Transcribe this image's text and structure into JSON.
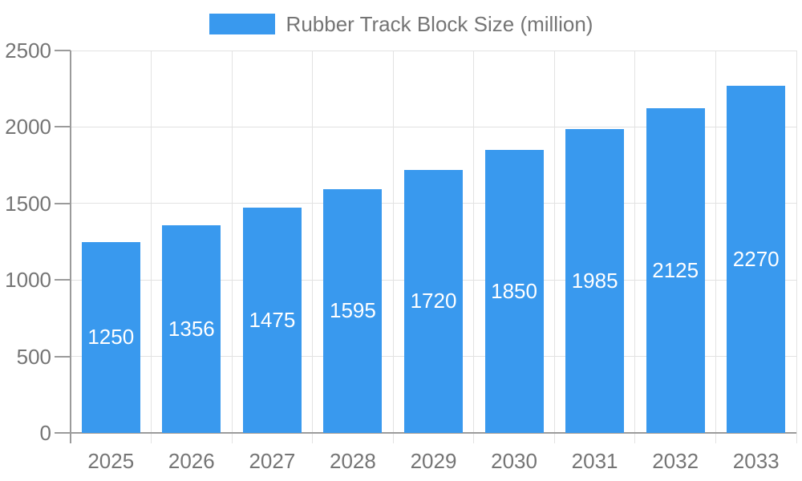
{
  "chart_data": {
    "type": "bar",
    "title": "",
    "legend": {
      "label": "Rubber Track Block Size (million)",
      "position": "top"
    },
    "categories": [
      "2025",
      "2026",
      "2027",
      "2028",
      "2029",
      "2030",
      "2031",
      "2032",
      "2033"
    ],
    "series": [
      {
        "name": "Rubber Track Block Size (million)",
        "values": [
          1250,
          1356,
          1475,
          1595,
          1720,
          1850,
          1985,
          2125,
          2270
        ]
      }
    ],
    "bar_value_labels": [
      "1250",
      "1356",
      "1475",
      "1595",
      "1720",
      "1850",
      "1985",
      "2125",
      "2270"
    ],
    "xlabel": "",
    "ylabel": "",
    "ylim": [
      0,
      2500
    ],
    "yticks": [
      0,
      500,
      1000,
      1500,
      2000,
      2500
    ],
    "grid": true,
    "colors": {
      "bar": "#3999EE",
      "bar_label": "#FFFFFF",
      "axis_text": "#757575",
      "grid_line": "#E2E2E2",
      "axis_line": "#9B9B9B",
      "background": "#FFFFFF"
    }
  }
}
